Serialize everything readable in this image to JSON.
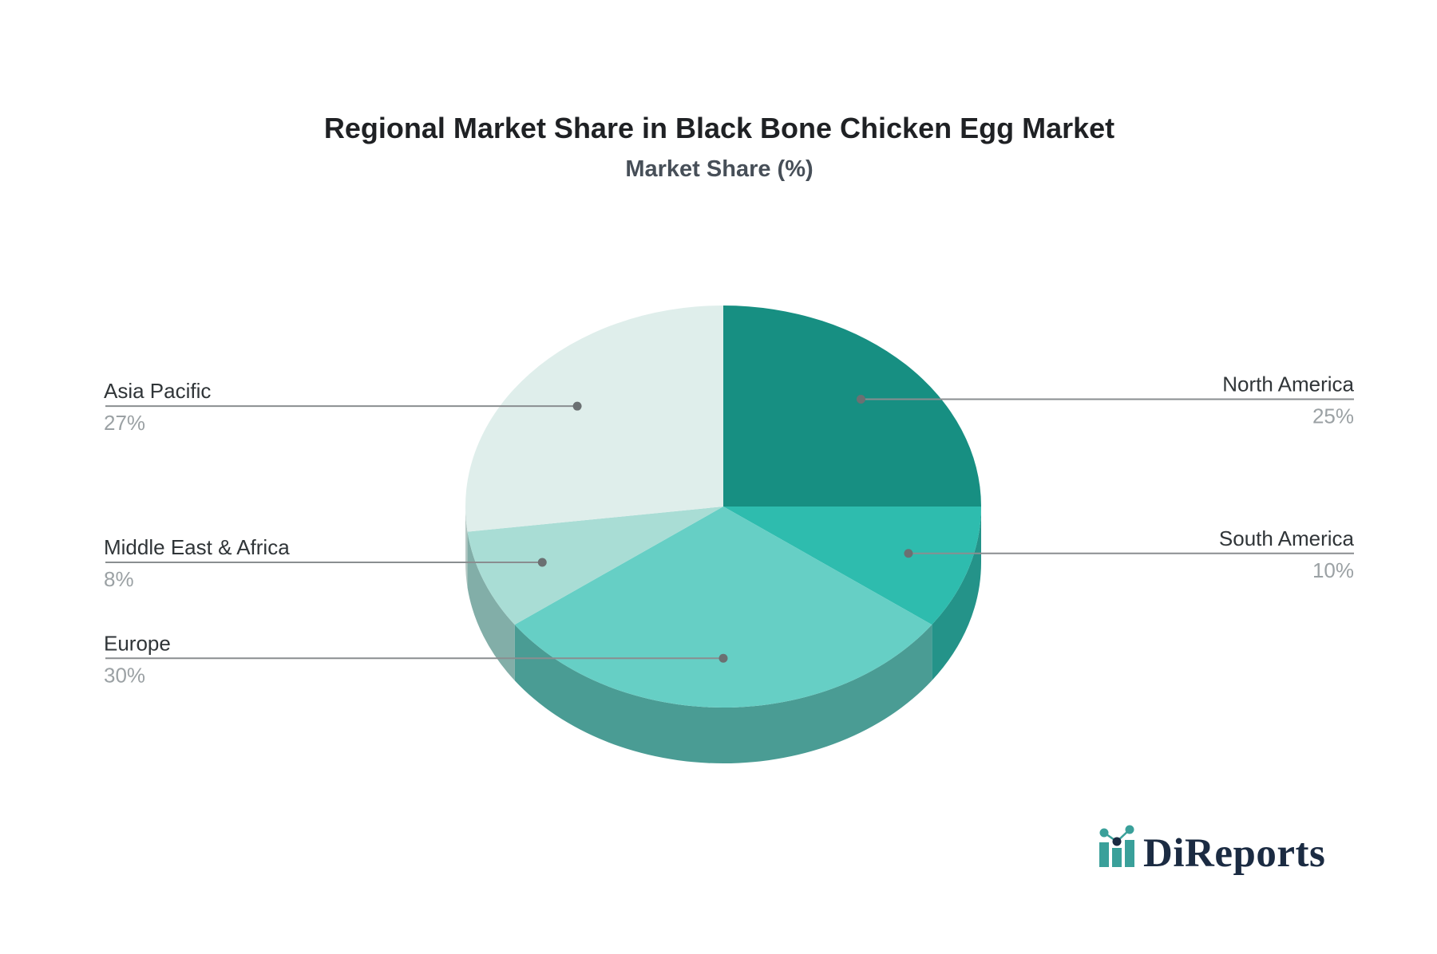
{
  "title": "Regional Market Share in Black Bone Chicken Egg Market",
  "subtitle": "Market Share (%)",
  "brand": {
    "name": "DiReports",
    "icon": "bar-line-chart-logo-icon",
    "text_color": "#1b2b42",
    "icon_color": "#3aa09a",
    "icon_dot_accent_color": "#1b2b42"
  },
  "colors": {
    "background": "#ffffff",
    "title": "#1f2124",
    "subtitle": "#474f58",
    "label_name": "#303538",
    "label_pct": "#9ba1a4",
    "leader_line": "#8a8e90",
    "leader_dot": "#6b7072"
  },
  "chart_data": {
    "type": "pie",
    "title": "Regional Market Share in Black Bone Chicken Egg Market",
    "subtitle": "Market Share (%)",
    "unit": "%",
    "effect": "3d-extruded",
    "start_angle_deg": 0,
    "direction": "clockwise",
    "legend": "none",
    "grid": false,
    "slices": [
      {
        "label": "North America",
        "value": 25,
        "display": "25%",
        "color": "#178f82",
        "side_color": "#117065",
        "label_side": "right"
      },
      {
        "label": "South America",
        "value": 10,
        "display": "10%",
        "color": "#2ebcae",
        "side_color": "#249389",
        "label_side": "right"
      },
      {
        "label": "Europe",
        "value": 30,
        "display": "30%",
        "color": "#66cfc5",
        "side_color": "#4a9c94",
        "label_side": "left"
      },
      {
        "label": "Middle East & Africa",
        "value": 8,
        "display": "8%",
        "color": "#a9ddd5",
        "side_color": "#82aea8",
        "label_side": "left"
      },
      {
        "label": "Asia Pacific",
        "value": 27,
        "display": "27%",
        "color": "#dfeeeb",
        "side_color": "#b5c8c4",
        "label_side": "left"
      }
    ]
  }
}
